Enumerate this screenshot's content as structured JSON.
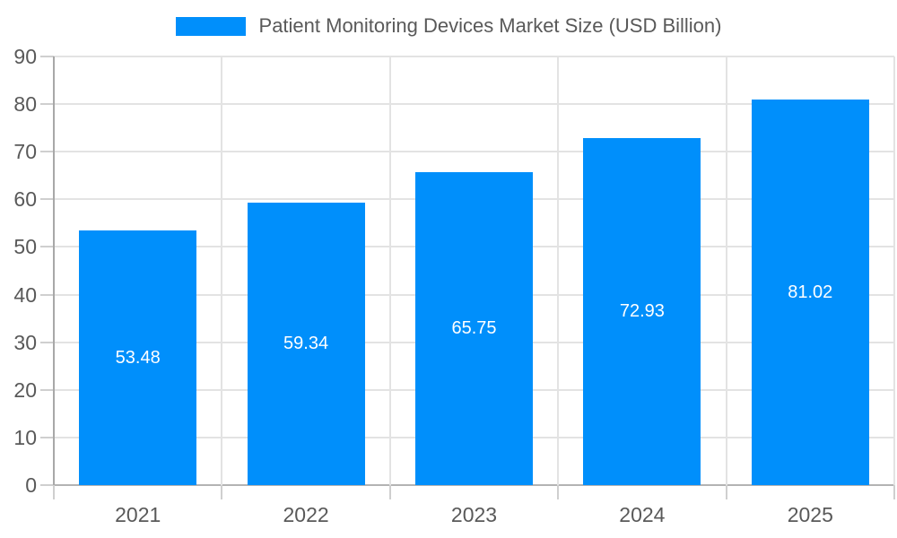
{
  "chart_data": {
    "type": "bar",
    "title": "Patient Monitoring Devices Market Size (USD Billion)",
    "categories": [
      "2021",
      "2022",
      "2023",
      "2024",
      "2025"
    ],
    "values": [
      53.48,
      59.34,
      65.75,
      72.93,
      81.02
    ],
    "value_labels": [
      "53.48",
      "59.34",
      "65.75",
      "72.93",
      "81.02"
    ],
    "xlabel": "",
    "ylabel": "",
    "ylim": [
      0,
      90
    ],
    "yticks": [
      0,
      10,
      20,
      30,
      40,
      50,
      60,
      70,
      80,
      90
    ],
    "grid": "horizontal gridlines at each y tick plus vertical category-boundary gridlines",
    "legend_position": "top-center",
    "bar_label_position": "center-of-bar"
  },
  "legend": {
    "label": "Patient Monitoring Devices Market Size (USD Billion)"
  },
  "colors": {
    "bar": "#008FFB",
    "grid": "#e3e3e3",
    "zero_line": "#b3b3b3",
    "y_axis": "#a8a8a8",
    "tick": "#cfcfcf",
    "axis_label": "#595959",
    "bar_label": "#ffffff",
    "background": "#ffffff"
  }
}
